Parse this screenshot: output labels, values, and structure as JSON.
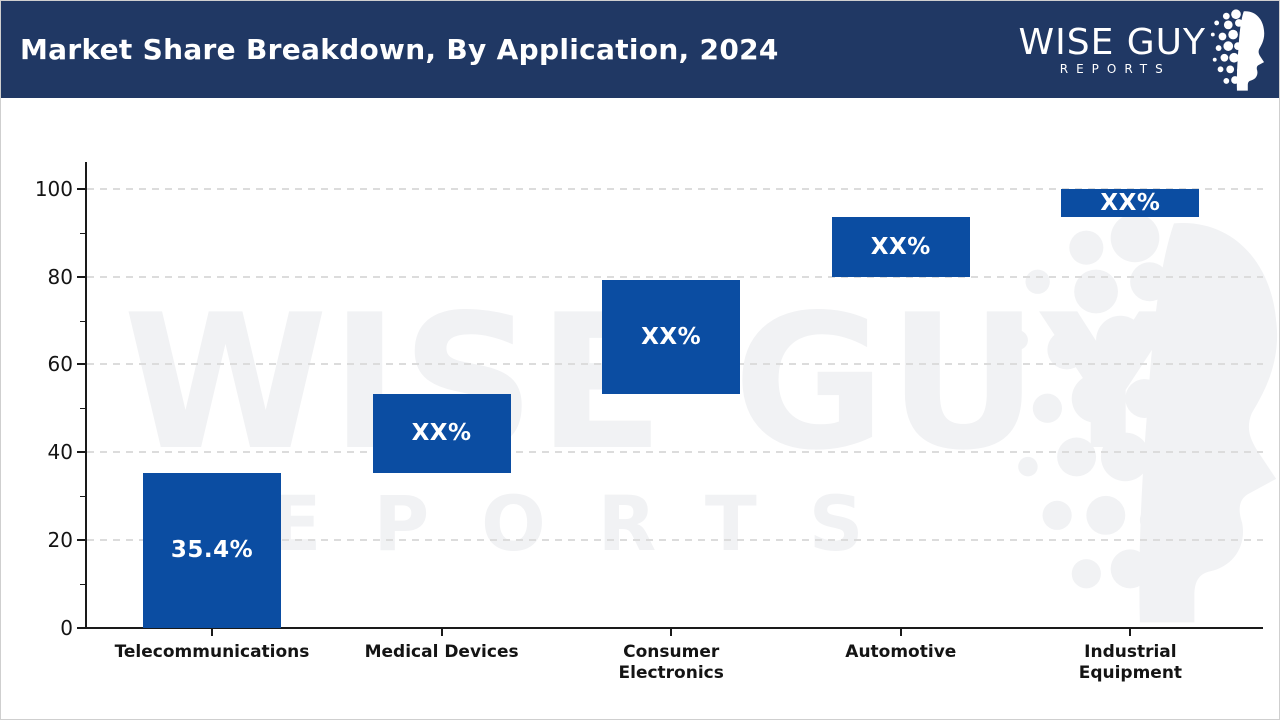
{
  "header": {
    "title": "Market Share Breakdown, By Application, 2024",
    "logo": {
      "line1": "WISE GUY",
      "line2": "REPORTS"
    }
  },
  "watermark": {
    "line1": "WISE GUY",
    "line2": "REPORTS"
  },
  "colors": {
    "header_bg": "#203864",
    "bar": "#0b4da2",
    "grid": "#dcdcdc",
    "axis": "#1a1a1a",
    "watermark": "#f1f2f4"
  },
  "chart_data": {
    "type": "bar",
    "subtype": "floating-waterfall",
    "title": "Market Share Breakdown, By Application, 2024",
    "xlabel": "",
    "ylabel": "",
    "ylim": [
      0,
      100
    ],
    "yticks": [
      0,
      20,
      40,
      60,
      80,
      100
    ],
    "grid": "horizontal-dashed",
    "legend": "none",
    "categories": [
      "Telecommunications",
      "Medical Devices",
      "Consumer Electronics",
      "Automotive",
      "Industrial Equipment"
    ],
    "tick_label_lines": [
      [
        "Telecommunications"
      ],
      [
        "Medical Devices"
      ],
      [
        "Consumer",
        "Electronics"
      ],
      [
        "Automotive"
      ],
      [
        "Industrial",
        "Equipment"
      ]
    ],
    "segments": [
      {
        "category": "Telecommunications",
        "start": 0,
        "end": 35.4,
        "label": "35.4%"
      },
      {
        "category": "Medical Devices",
        "start": 35.4,
        "end": 53.3,
        "label": "XX%"
      },
      {
        "category": "Consumer Electronics",
        "start": 53.3,
        "end": 79.3,
        "label": "XX%"
      },
      {
        "category": "Automotive",
        "start": 80.0,
        "end": 93.6,
        "label": "XX%"
      },
      {
        "category": "Industrial Equipment",
        "start": 93.6,
        "end": 100,
        "label": "XX%"
      }
    ]
  }
}
